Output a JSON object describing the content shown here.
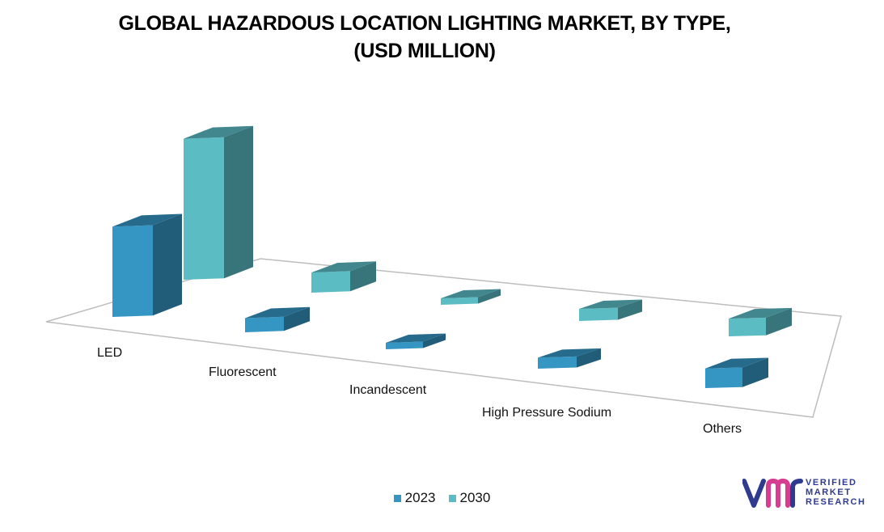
{
  "chart_data": {
    "type": "bar",
    "title_lines": [
      "GLOBAL HAZARDOUS LOCATION LIGHTING MARKET, BY TYPE,",
      "(USD MILLION)"
    ],
    "categories": [
      "LED",
      "Fluorescent",
      "Incandescent",
      "High Pressure Sodium",
      "Others"
    ],
    "series": [
      {
        "name": "2023",
        "values": [
          115,
          18,
          6,
          14,
          25
        ],
        "color": "#3595c3"
      },
      {
        "name": "2030",
        "values": [
          175,
          25,
          8,
          15,
          22
        ],
        "color": "#5bbcc4"
      }
    ],
    "ylim": [
      0,
      180
    ],
    "grid": false,
    "legend_position": "bottom",
    "style": "3d-column"
  },
  "logo": {
    "mark": "vm",
    "lines": [
      "VERIFIED",
      "MARKET",
      "RESEARCH"
    ],
    "registered": "®",
    "colors": [
      "#2f3b8f",
      "#d63c8f"
    ]
  }
}
